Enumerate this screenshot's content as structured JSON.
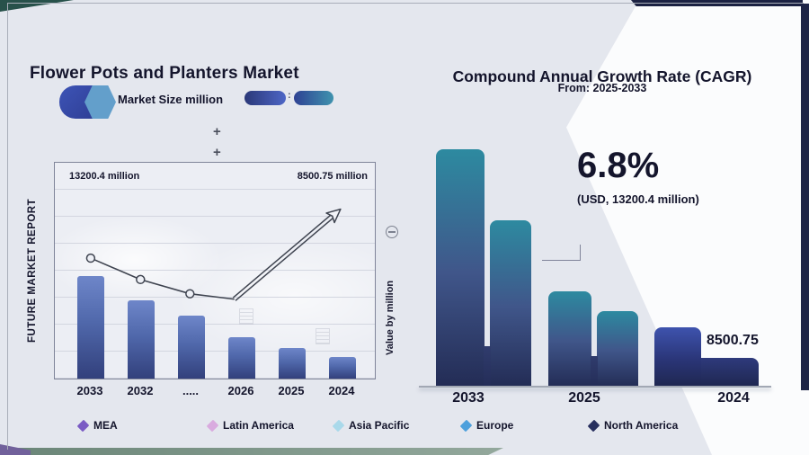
{
  "decor": {
    "plus_mark": "+",
    "ratio_separator": ":"
  },
  "left_panel": {
    "title": "Flower Pots and Planters Market",
    "market_size_label": "Market Size million",
    "watermark_vertical": "FUTURE MARKET REPORT"
  },
  "legend": {
    "items": [
      {
        "label": "MEA",
        "color": "#7a5bc4"
      },
      {
        "label": "Latin America",
        "color": "#d9abdf"
      },
      {
        "label": "Asia Pacific",
        "color": "#a9d9ea"
      },
      {
        "label": "Europe",
        "color": "#4da0dc"
      },
      {
        "label": "North America",
        "color": "#272f5e"
      }
    ]
  },
  "colors": {
    "background": "#e4e7ee",
    "left_bar_top": "#6e86c9",
    "left_bar_bottom": "#32407c",
    "right_bar_teal_top": "#2d8aa0",
    "right_bar_navy_bottom": "#232c55",
    "right_bar_blue_top": "#3e53ae",
    "accent_dark": "#1d2446"
  },
  "chart_data": [
    {
      "type": "bar",
      "name": "market-size-by-year",
      "title": "Market Size million",
      "ylabel": "Value by million",
      "categories": [
        "2033",
        "2032",
        ".....",
        "2026",
        "2025",
        "2024"
      ],
      "series": [
        {
          "name": "Market Size (relative bar height, axis unlabeled)",
          "values": [
            0.47,
            0.36,
            0.29,
            0.19,
            0.14,
            0.1
          ]
        }
      ],
      "value_start_label": "13200.4 million",
      "value_end_label": "8500.75 million",
      "grid": true,
      "axis_numeric_labels": false,
      "trend_line": {
        "points": [
          [
            0.111,
            0.442
          ],
          [
            0.267,
            0.541
          ],
          [
            0.422,
            0.607
          ],
          [
            0.561,
            0.632
          ]
        ],
        "arrow_end": [
          0.894,
          0.215
        ],
        "note": "fractions of plot area, y measured downward"
      }
    },
    {
      "type": "bar",
      "name": "cagr-grouped-bars",
      "title": "Compound Annual Growth Rate (CAGR)",
      "subtitle": "From: 2025-2033",
      "cagr_percent": "6.8%",
      "cagr_detail": "(USD, 13200.4 million)",
      "categories": [
        "2033",
        "2025",
        "2024"
      ],
      "series": [
        {
          "name": "bar-left (relative height)",
          "values": [
            1.0,
            0.4,
            0.25
          ]
        },
        {
          "name": "bar-right (relative height)",
          "values": [
            0.7,
            0.32,
            0.12
          ]
        }
      ],
      "data_labels": [
        {
          "category": "2024",
          "label": "8500.75"
        }
      ],
      "legend_position": "bottom"
    }
  ]
}
